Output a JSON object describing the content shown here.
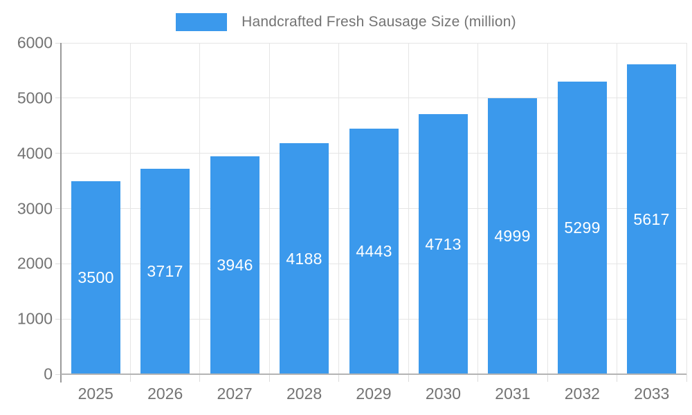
{
  "legend": {
    "label": "Handcrafted Fresh Sausage Size (million)",
    "swatch_color": "#3b99ec"
  },
  "chart_data": {
    "type": "bar",
    "title": "Handcrafted Fresh Sausage Size (million)",
    "series": [
      {
        "name": "Handcrafted Fresh Sausage Size (million)",
        "values": [
          3500,
          3717,
          3946,
          4188,
          4443,
          4713,
          4999,
          5299,
          5617
        ]
      }
    ],
    "categories": [
      "2025",
      "2026",
      "2027",
      "2028",
      "2029",
      "2030",
      "2031",
      "2032",
      "2033"
    ],
    "value_labels_shown": true,
    "xlabel": "",
    "ylabel": "",
    "ylim": [
      0,
      6000
    ],
    "yticks": [
      0,
      1000,
      2000,
      3000,
      4000,
      5000,
      6000
    ],
    "grid": true,
    "legend_position": "top-center",
    "colors": {
      "bar": "#3b99ec",
      "bar_value_text": "#ffffff",
      "axis_text": "#737373",
      "gridline": "#e5e5e5",
      "y_axis_line": "#9a9a9a",
      "x_axis_line": "#b3b3b3",
      "background": "#ffffff"
    }
  }
}
